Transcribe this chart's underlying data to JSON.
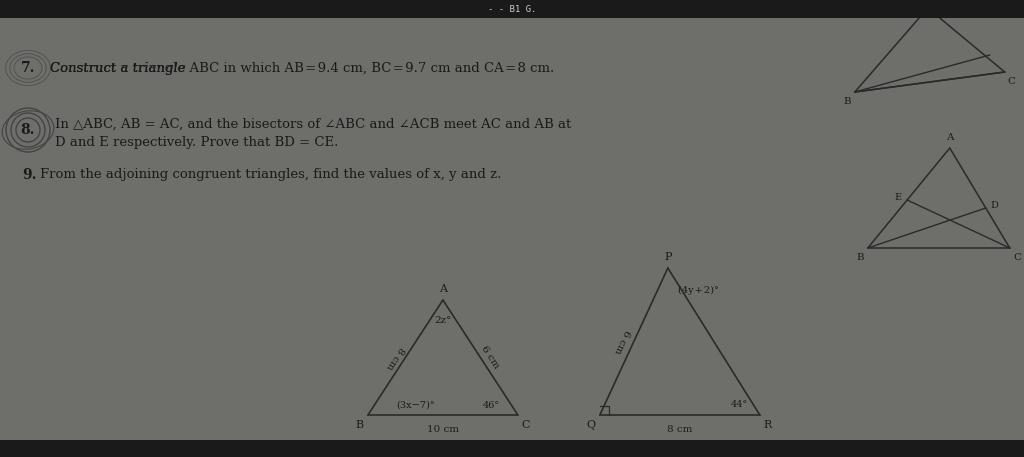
{
  "bg_color": "#6e6e6a",
  "paper_color": "#c8c5bb",
  "bar_color": "#1a1a1a",
  "text_color": "#1a1a1a",
  "line_color": "#2a2a2a",
  "top_bar_height": 18,
  "bot_bar_height": 17,
  "fig_width": 10.24,
  "fig_height": 4.57,
  "top_text": "- - B1 G.",
  "q7_text": "7. Construct a triangle ABC in which AB = 9.4 cm, BC = 9.7 cm and CA = 8 cm.",
  "q8_line1": "In △ABC, AB = AC, and the bisectors of ∠ABC and ∠ACB meet AC and AB at",
  "q8_line2": "D and E respectively. Prove that BD = CE.",
  "q9_text": "9. From the adjoining congruent triangles, find the values of x, y and z."
}
